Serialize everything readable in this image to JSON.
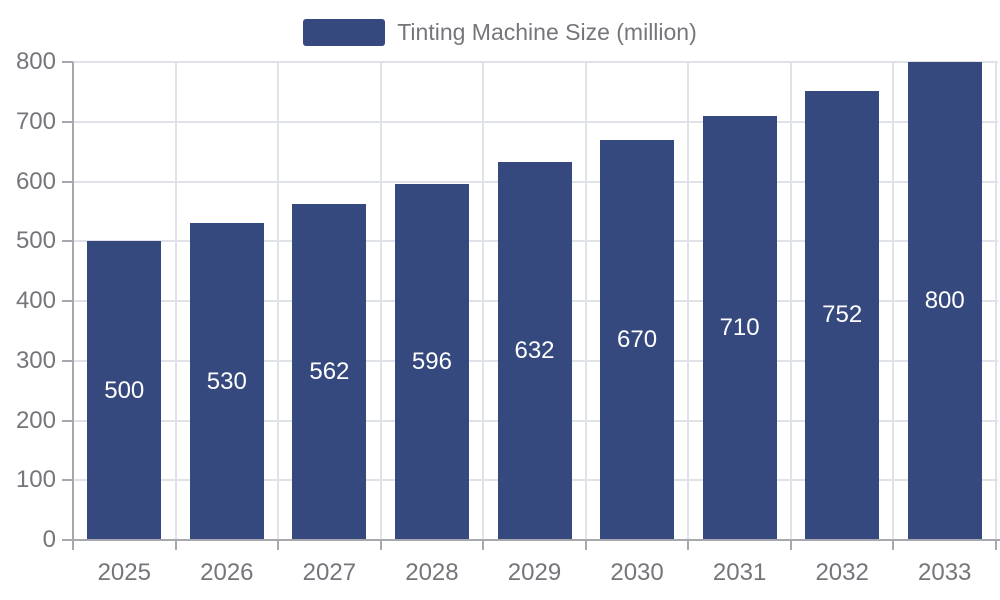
{
  "legend": {
    "label": "Tinting Machine Size (million)"
  },
  "chart_data": {
    "type": "bar",
    "title": "Tinting Machine Size (million)",
    "categories": [
      "2025",
      "2026",
      "2027",
      "2028",
      "2029",
      "2030",
      "2031",
      "2032",
      "2033"
    ],
    "values": [
      500,
      530,
      562,
      596,
      632,
      670,
      710,
      752,
      800
    ],
    "series": [
      {
        "name": "Tinting Machine Size (million)",
        "values": [
          500,
          530,
          562,
          596,
          632,
          670,
          710,
          752,
          800
        ]
      }
    ],
    "xlabel": "",
    "ylabel": "",
    "ylim": [
      0,
      800
    ],
    "ytick_step": 100,
    "ytick_labels": [
      "0",
      "100",
      "200",
      "300",
      "400",
      "500",
      "600",
      "700",
      "800"
    ],
    "grid": true,
    "legend_position": "top",
    "value_labels_shown": true,
    "colors": {
      "bar": "#36497F",
      "value_label": "#FFFFFF",
      "axis_text": "#75767B",
      "axis_line": "#A7A8AD",
      "gridline": "#E0E2EA",
      "background": "#FFFFFF"
    }
  }
}
